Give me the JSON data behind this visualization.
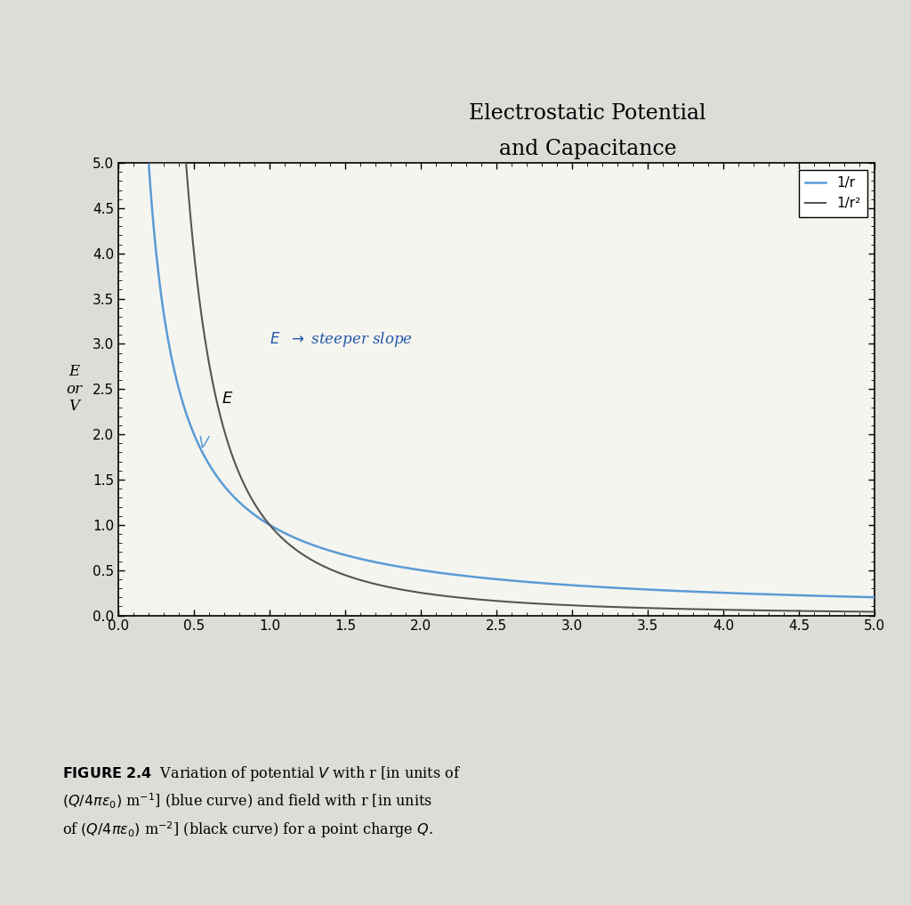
{
  "curve_1_label": "1/r",
  "curve_2_label": "1/r²",
  "curve_1_color": "#5b9bd5",
  "curve_2_color": "#555555",
  "plot_bg_color": "#f5f5f0",
  "page_bg_color": "#dcdcd8",
  "header_bg_color": "#b8b8b0",
  "r_start": 0.2,
  "r_end": 5.0,
  "xlim": [
    0,
    5
  ],
  "ylim": [
    0,
    5
  ],
  "xticks": [
    0,
    0.5,
    1,
    1.5,
    2,
    2.5,
    3,
    3.5,
    4,
    4.5,
    5
  ],
  "yticks": [
    0,
    0.5,
    1,
    1.5,
    2,
    2.5,
    3,
    3.5,
    4,
    4.5,
    5
  ],
  "ylabel": "E\nor\nV",
  "fig_width": 10.24,
  "fig_height": 10.17
}
